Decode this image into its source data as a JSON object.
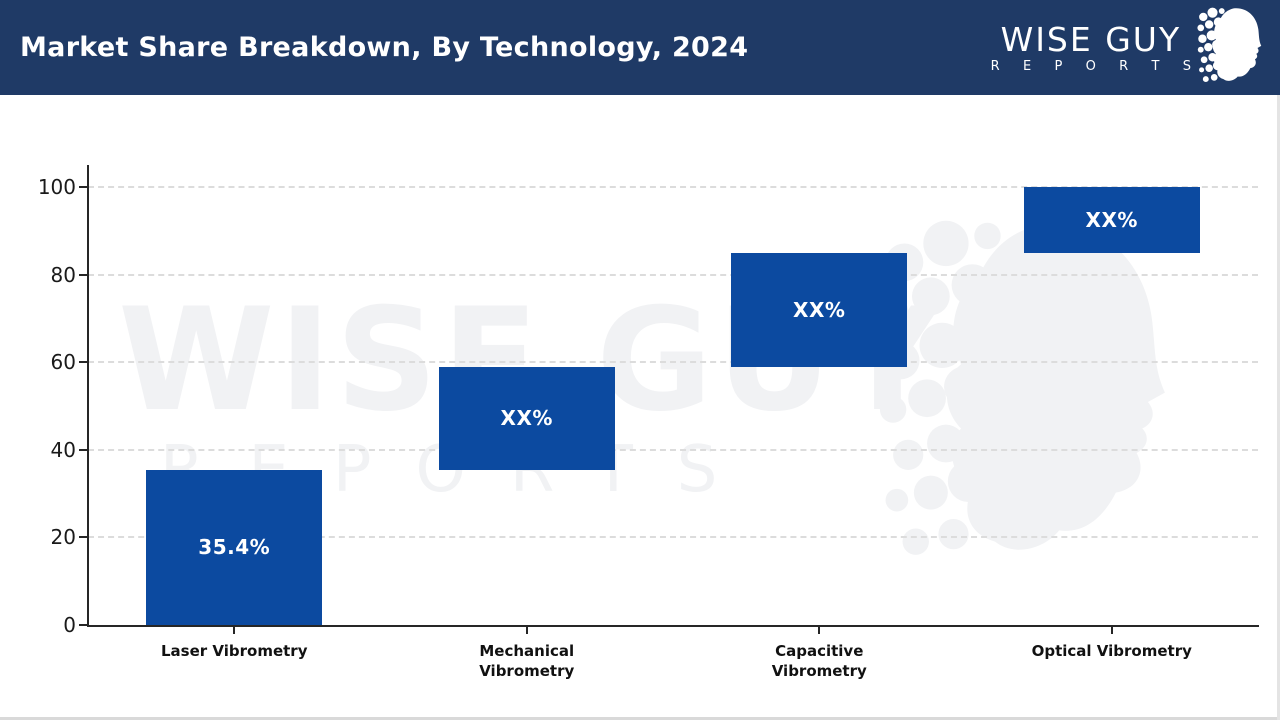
{
  "header": {
    "title": "Market Share Breakdown, By Technology, 2024",
    "logo": {
      "line1": "WISE GUY",
      "line2": "REPORTS"
    }
  },
  "watermark": {
    "line1": "WISE GUY",
    "line2": "REPORTS"
  },
  "chart_data": {
    "type": "bar",
    "subtype": "floating-waterfall",
    "title": "Market Share Breakdown, By Technology, 2024",
    "categories": [
      [
        "Laser Vibrometry"
      ],
      [
        "Mechanical",
        "Vibrometry"
      ],
      [
        "Capacitive",
        "Vibrometry"
      ],
      [
        "Optical Vibrometry"
      ]
    ],
    "segments": [
      {
        "category": "Laser Vibrometry",
        "start": 0,
        "end": 35.4,
        "label": "35.4%"
      },
      {
        "category": "Mechanical Vibrometry",
        "start": 35.4,
        "end": 59,
        "label": "XX%"
      },
      {
        "category": "Capacitive Vibrometry",
        "start": 59,
        "end": 85,
        "label": "XX%"
      },
      {
        "category": "Optical Vibrometry",
        "start": 85,
        "end": 100,
        "label": "XX%"
      }
    ],
    "yticks": [
      0,
      20,
      40,
      60,
      80,
      100
    ],
    "ylim": [
      0,
      105
    ],
    "xlabel": "",
    "ylabel": "",
    "grid": "horizontal-dashed",
    "legend": "none",
    "bar_color": "#0c4aa0",
    "label_color": "#ffffff"
  },
  "colors": {
    "header_bg": "#1f3a66",
    "bar": "#0c4aa0",
    "gridline": "#dcdcdc",
    "axis": "#262626",
    "watermark": "#f1f2f4",
    "background": "#ffffff"
  }
}
